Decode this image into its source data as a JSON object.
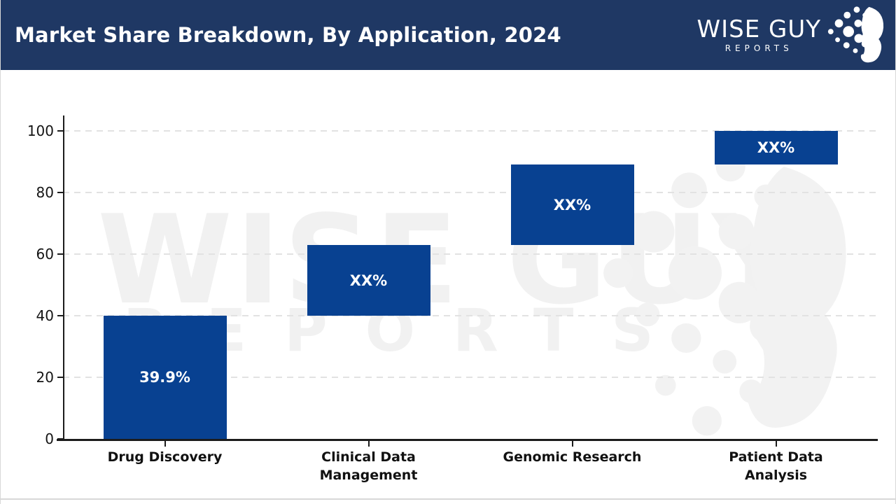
{
  "header": {
    "title": "Market Share Breakdown, By Application, 2024",
    "logo": {
      "line1": "WISE GUY",
      "line2": "REPORTS"
    }
  },
  "watermark": {
    "line1": "WISE GUY",
    "line2": "REPORTS"
  },
  "colors": {
    "header_navy": "#1f3864",
    "bar_blue": "#084191",
    "bar_label_white": "#ffffff",
    "gridline_gray": "#e2e2e2",
    "axis_black": "#1c1c1c",
    "watermark_gray": "#f1f1f1"
  },
  "chart_data": {
    "type": "bar",
    "subtype": "floating-waterfall",
    "title": "Market Share Breakdown, By Application, 2024",
    "categories": [
      "Drug Discovery",
      "Clinical Data Management",
      "Genomic Research",
      "Patient Data Analysis"
    ],
    "category_lines": [
      [
        "Drug Discovery"
      ],
      [
        "Clinical Data",
        "Management"
      ],
      [
        "Genomic Research"
      ],
      [
        "Patient Data",
        "Analysis"
      ]
    ],
    "series": [
      {
        "name": "Market Share",
        "segments": [
          {
            "category": "Drug Discovery",
            "start": 0,
            "end": 39.9,
            "label": "39.9%"
          },
          {
            "category": "Clinical Data Management",
            "start": 39.9,
            "end": 63,
            "label": "XX%"
          },
          {
            "category": "Genomic Research",
            "start": 63,
            "end": 89,
            "label": "XX%"
          },
          {
            "category": "Patient Data Analysis",
            "start": 89,
            "end": 100,
            "label": "XX%"
          }
        ]
      }
    ],
    "xlabel": "",
    "ylabel": "",
    "yticks": [
      0,
      20,
      40,
      60,
      80,
      100
    ],
    "ylim": [
      0,
      105
    ],
    "grid": "dashed-horizontal",
    "legend": "none"
  }
}
